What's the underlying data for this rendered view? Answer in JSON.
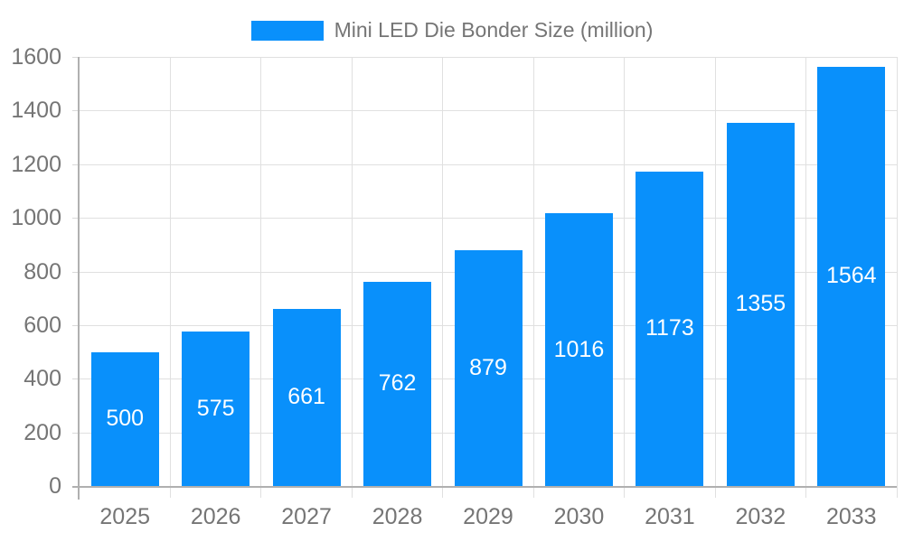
{
  "legend": {
    "label": "Mini LED Die Bonder Size (million)"
  },
  "chart_data": {
    "type": "bar",
    "title": "Mini LED Die Bonder Size (million)",
    "categories": [
      "2025",
      "2026",
      "2027",
      "2028",
      "2029",
      "2030",
      "2031",
      "2032",
      "2033"
    ],
    "values": [
      500,
      575,
      661,
      762,
      879,
      1016,
      1173,
      1355,
      1564
    ],
    "bar_labels": [
      "500",
      "575",
      "661",
      "762",
      "879",
      "1016",
      "1173",
      "1355",
      "1564"
    ],
    "xlabel": "",
    "ylabel": "",
    "ylim": [
      0,
      1600
    ],
    "ytick_step": 200,
    "yticks": [
      0,
      200,
      400,
      600,
      800,
      1000,
      1200,
      1400,
      1600
    ],
    "grid": true,
    "legend_position": "top",
    "value_labels_position": "inside-center"
  },
  "colors": {
    "bar": "#0990fb",
    "axis_text": "#757575",
    "grid_line": "#e0e0e0",
    "tick_line": "#d9d9d9",
    "axis_line": "#b0b0b0",
    "bar_label_text": "#ffffff",
    "background": "#ffffff"
  }
}
